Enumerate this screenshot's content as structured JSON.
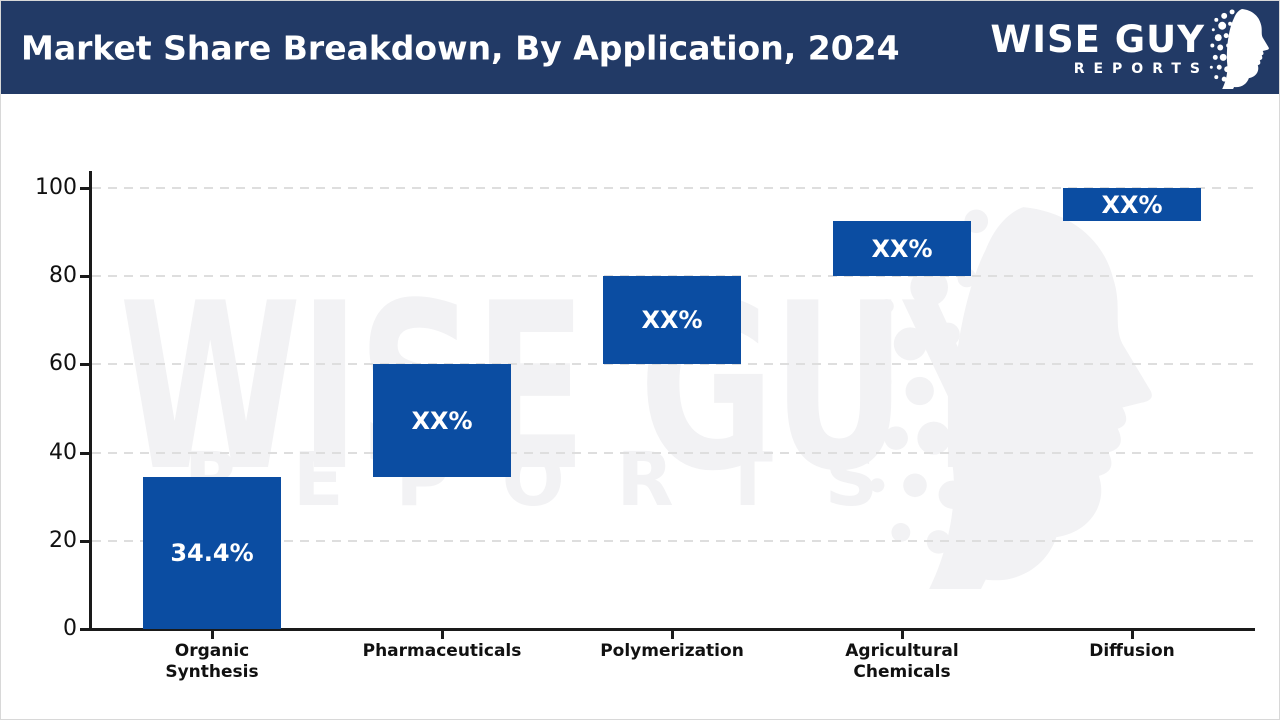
{
  "header": {
    "title": "Market Share Breakdown, By Application, 2024",
    "logo": {
      "line1": "WISE GUY",
      "line2": "REPORTS"
    }
  },
  "watermark": {
    "line1": "WISE GUY",
    "line2": "REPORTS"
  },
  "colors": {
    "header_bg": "#223a66",
    "bar": "#0b4da2",
    "bar_label": "#ffffff",
    "gridline": "#dedede",
    "axis": "#1a1a1a",
    "tick_label": "#111111",
    "watermark": "#f2f2f4"
  },
  "chart_data": {
    "type": "bar",
    "subtype": "waterfall",
    "title": "Market Share Breakdown, By Application, 2024",
    "categories": [
      "Organic Synthesis",
      "Pharmaceuticals",
      "Polymerization",
      "Agricultural Chemicals",
      "Diffusion"
    ],
    "segments": [
      [
        0,
        34.4
      ],
      [
        34.4,
        60
      ],
      [
        60,
        80
      ],
      [
        80,
        92.5
      ],
      [
        92.5,
        100
      ]
    ],
    "bar_labels": [
      "34.4%",
      "XX%",
      "XX%",
      "XX%",
      "XX%"
    ],
    "y_ticks": [
      0,
      20,
      40,
      60,
      80,
      100
    ],
    "ylim": [
      0,
      105
    ],
    "xlabel": "",
    "ylabel": "",
    "grid": "dashed-horizontal",
    "legend": "none"
  }
}
